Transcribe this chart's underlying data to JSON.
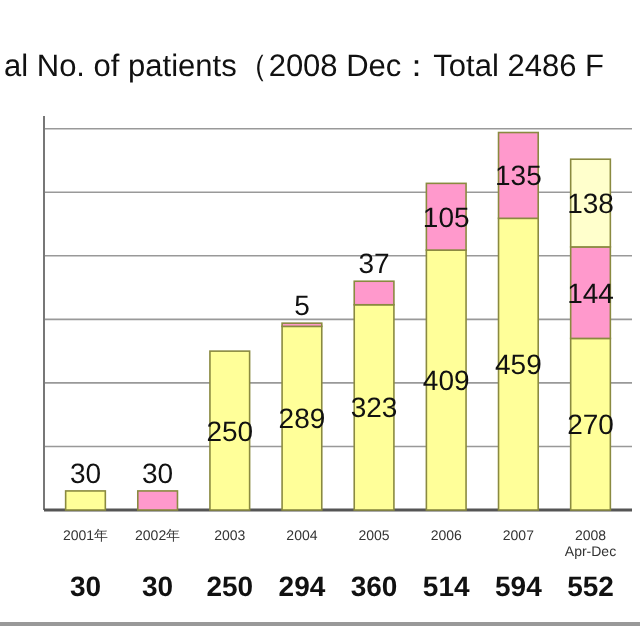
{
  "chart_data": {
    "type": "bar",
    "stacked": true,
    "title": "al No. of patients（2008 Dec：Total 2486 F",
    "categories": [
      "2001年",
      "2002年",
      "2003",
      "2004",
      "2005",
      "2006",
      "2007",
      "2008 Apr-Dec"
    ],
    "series": [
      {
        "color": "#ffff99",
        "values": [
          30,
          null,
          250,
          289,
          323,
          409,
          459,
          270
        ]
      },
      {
        "color": "#ff99cc",
        "values": [
          null,
          30,
          null,
          5,
          37,
          105,
          135,
          144
        ]
      },
      {
        "color": "#ffffcc",
        "values": [
          null,
          null,
          null,
          null,
          null,
          null,
          null,
          138
        ]
      }
    ],
    "ylim": [
      0,
      620
    ],
    "yticks": [
      {
        "value": 0,
        "label": null
      },
      {
        "value": 100,
        "label": null
      },
      {
        "value": 200,
        "label": null
      },
      {
        "value": 300,
        "label": null
      },
      {
        "value": 400,
        "label": null
      },
      {
        "value": 500,
        "label": null
      },
      {
        "value": 600,
        "label": null
      }
    ],
    "grid": "y",
    "data_labels": true,
    "totals": [
      "30",
      "30",
      "250",
      "294",
      "360",
      "514",
      "594",
      "552"
    ]
  }
}
